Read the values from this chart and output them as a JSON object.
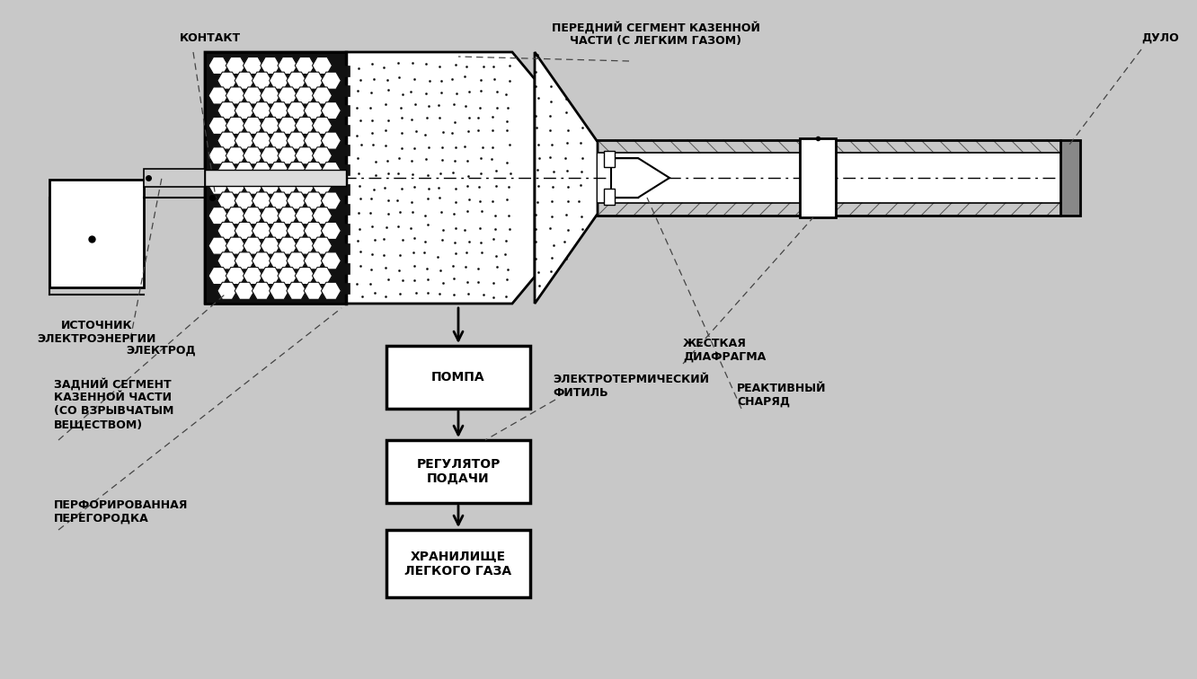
{
  "bg_color": "#c8c8c8",
  "lc": "#000000",
  "tc": "#000000",
  "labels": {
    "kontakt": "КОНТАКТ",
    "peredny_segment": "ПЕРЕДНИЙ СЕГМЕНТ КАЗЕННОЙ\nЧАСТИ (С ЛЕГКИМ ГАЗОМ)",
    "dulo": "ДУЛО",
    "istochnik": "ИСТОЧНИК\nЭЛЕКТРОЭНЕРГИИ",
    "elektrod": "ЭЛЕКТРОД",
    "zadny_segment": "ЗАДНИЙ СЕГМЕНТ\nКАЗЕННОЙ ЧАСТИ\n(СО ВЗРЫВЧАТЫМ\nВЕЩЕСТВОМ)",
    "perforirovannaya": "ПЕРФОРИРОВАННАЯ\nПЕРЕГОРОДКА",
    "pompa": "ПОМПА",
    "regulator": "РЕГУЛЯТОР\nПОДАЧИ",
    "khranilische": "ХРАНИЛИЩЕ\nЛЕГКОГО ГАЗА",
    "zhestkaya": "ЖЕСТКАЯ\nДИАФРАГМА",
    "reaktivny": "РЕАКТИВНЫЙ\nСНАРЯД",
    "elektrotermichesky": "ЭЛЕКТРОТЕРМИЧЕСКИЙ\nФИТИЛЬ"
  },
  "figsize": [
    13.32,
    7.56
  ],
  "dpi": 100
}
